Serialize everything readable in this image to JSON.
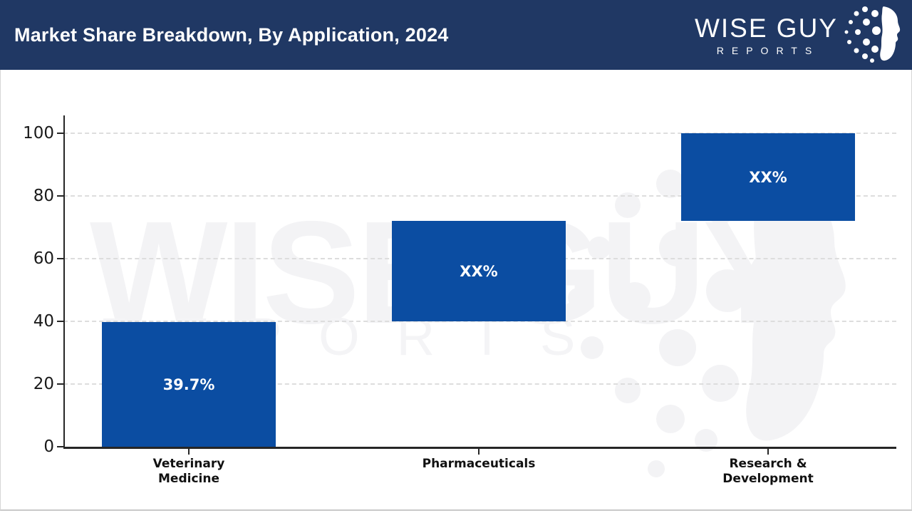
{
  "header": {
    "title": "Market Share Breakdown, By Application, 2024",
    "logo": {
      "line1": "WISE GUY",
      "line2": "REPORTS"
    }
  },
  "watermark": {
    "line1": "WISE GUY",
    "line2": "REPORTS"
  },
  "chart_data": {
    "type": "bar",
    "variant": "floating-segment (waterfall-style market share)",
    "title": "Market Share Breakdown, By Application, 2024",
    "categories": [
      "Veterinary Medicine",
      "Pharmaceuticals",
      "Research & Development"
    ],
    "category_label_lines": [
      [
        "Veterinary",
        "Medicine"
      ],
      [
        "Pharmaceuticals"
      ],
      [
        "Research &",
        "Development"
      ]
    ],
    "segments": [
      {
        "category": "Veterinary Medicine",
        "start": 0,
        "end": 39.7,
        "label": "39.7%"
      },
      {
        "category": "Pharmaceuticals",
        "start": 40,
        "end": 72,
        "label": "XX%"
      },
      {
        "category": "Research & Development",
        "start": 72,
        "end": 100,
        "label": "XX%"
      }
    ],
    "xlabel": "",
    "ylabel": "",
    "ylim": [
      0,
      105
    ],
    "yticks": [
      0,
      20,
      40,
      60,
      80,
      100
    ],
    "grid": "horizontal-dashed",
    "legend": "none",
    "bar_color": "#0b4da2",
    "bar_label_color": "#ffffff"
  },
  "colors": {
    "header_bg": "#203864",
    "header_text": "#ffffff",
    "bar": "#0b4da2",
    "axis": "#262626",
    "gridline": "#dddddd",
    "watermark": "#f3f3f5",
    "page_bg": "#ffffff"
  }
}
